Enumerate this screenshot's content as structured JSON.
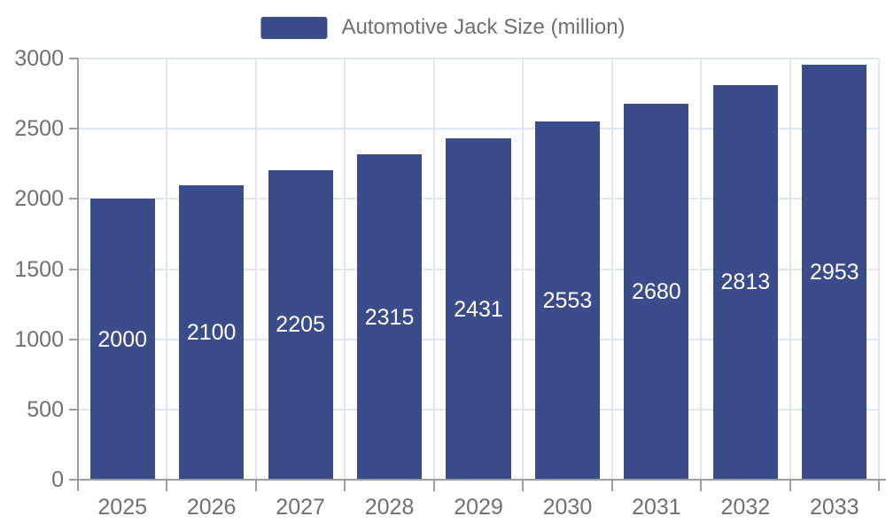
{
  "chart_data": {
    "type": "bar",
    "title": "Automotive Jack Size (million)",
    "categories": [
      "2025",
      "2026",
      "2027",
      "2028",
      "2029",
      "2030",
      "2031",
      "2032",
      "2033"
    ],
    "series": [
      {
        "name": "Automotive Jack Size (million)",
        "values": [
          2000,
          2100,
          2205,
          2315,
          2431,
          2553,
          2680,
          2813,
          2953
        ]
      }
    ],
    "value_labels": [
      "2000",
      "2100",
      "2205",
      "2315",
      "2431",
      "2553",
      "2680",
      "2813",
      "2953"
    ],
    "yticks": [
      0,
      500,
      1000,
      1500,
      2000,
      2500,
      3000
    ],
    "ylim": [
      0,
      3000
    ],
    "xlabel": "",
    "ylabel": "",
    "grid": true,
    "legend_position": "top-center",
    "colors": {
      "bar": "#3B4C8B",
      "gridline": "#E0E6F1",
      "axis_line": "#999CA4",
      "axis_text": "#6E7079",
      "bar_value_text": "#ffffff",
      "background": "#ffffff"
    }
  }
}
